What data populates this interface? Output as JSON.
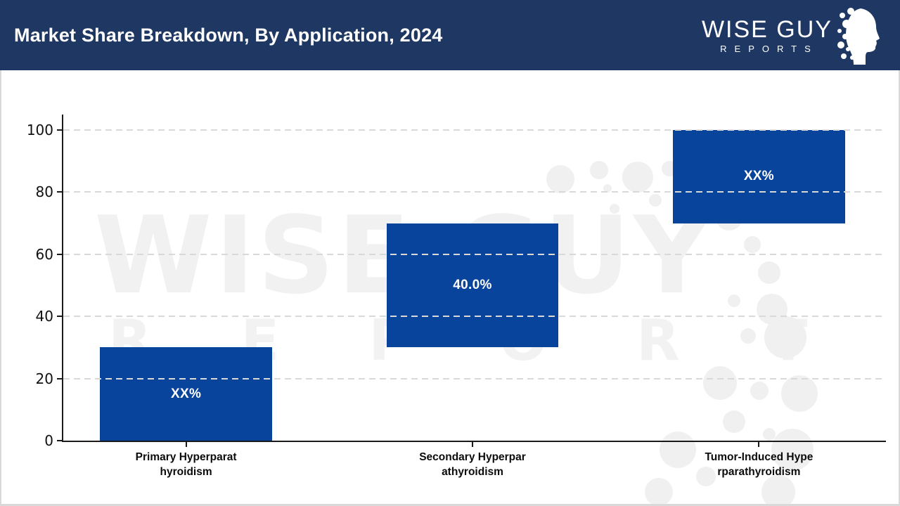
{
  "header": {
    "title": "Market Share Breakdown, By Application, 2024",
    "logo": {
      "line1": "WISE GUY",
      "line2": "REPORTS"
    }
  },
  "watermark": {
    "line1": "WISE GUY",
    "line2": "R E P O R T S"
  },
  "colors": {
    "header_bg": "#1f3863",
    "bar": "#08439c",
    "gridline": "#d9d9d9",
    "axis": "#1a1a1a",
    "watermark": "#f1f1f1",
    "panel_border": "#d9d9d9",
    "bar_label_text": "#ffffff",
    "title_text": "#ffffff"
  },
  "chart_data": {
    "type": "bar",
    "variant": "floating-waterfall",
    "title": "Market Share Breakdown, By Application, 2024",
    "categories": [
      "Primary Hyperparathyroidism",
      "Secondary Hyperparathyroidism",
      "Tumor-Induced Hyperparathyroidism"
    ],
    "category_display_lines": [
      [
        "Primary Hyperparat",
        "hyroidism"
      ],
      [
        "Secondary Hyperpar",
        "athyroidism"
      ],
      [
        "Tumor-Induced Hype",
        "rparathyroidism"
      ]
    ],
    "segments": [
      {
        "start": 0,
        "end": 30,
        "label": "XX%"
      },
      {
        "start": 30,
        "end": 70,
        "label": "40.0%"
      },
      {
        "start": 70,
        "end": 100,
        "label": "XX%"
      }
    ],
    "xlabel": "",
    "ylabel": "",
    "ylim": [
      0,
      100
    ],
    "yticks": [
      0,
      20,
      40,
      60,
      80,
      100
    ],
    "grid": "horizontal-dashed",
    "legend": "none"
  }
}
